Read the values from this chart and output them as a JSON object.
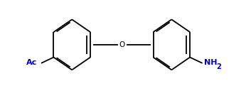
{
  "bg_color": "#ffffff",
  "line_color": "#000000",
  "ac_color": "#0000bb",
  "nh2_color": "#0000bb",
  "o_color": "#000000",
  "figsize": [
    3.53,
    1.21
  ],
  "dpi": 100,
  "ac_label": "Ac",
  "nh2_label": "NH",
  "nh2_sub": "2",
  "o_label": "O",
  "line_width": 1.3,
  "r1x": 0.285,
  "r1y": 0.48,
  "r2x": 0.685,
  "r2y": 0.48,
  "xr": 0.085,
  "yr": 0.3,
  "ox": 0.487,
  "oy": 0.48
}
